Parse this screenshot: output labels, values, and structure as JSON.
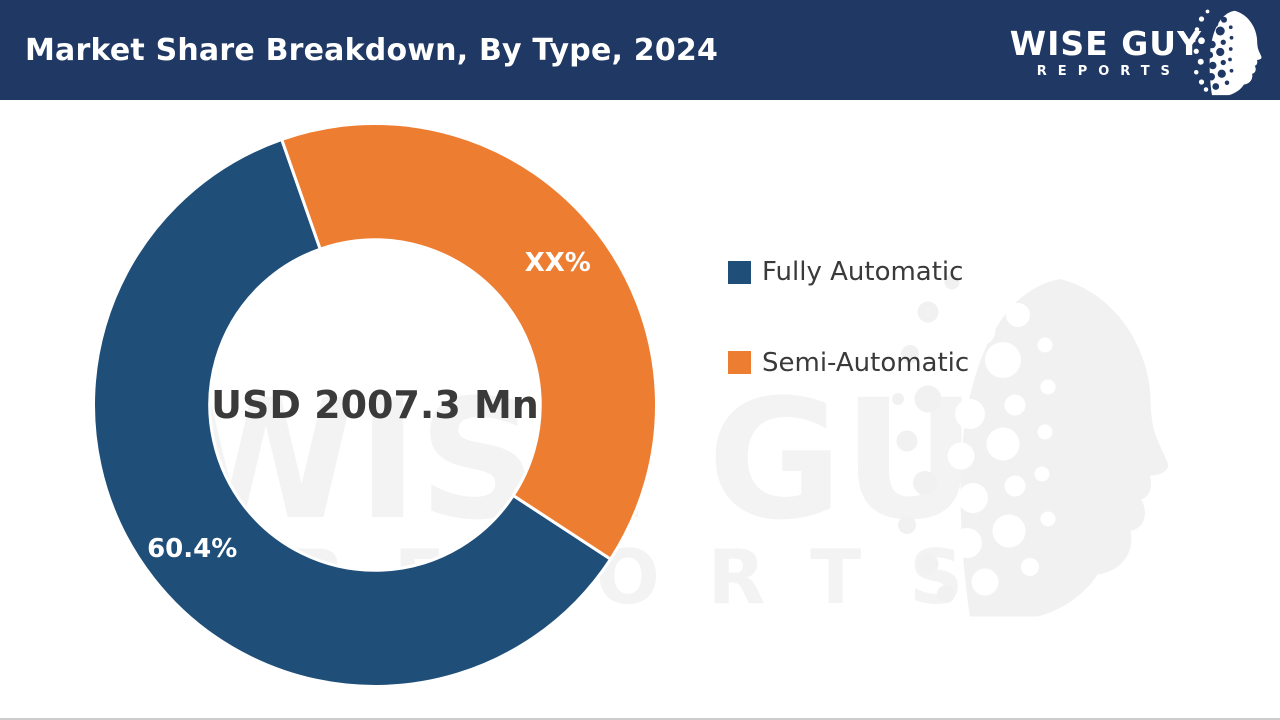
{
  "header": {
    "title": "Market Share Breakdown, By Type, 2024",
    "logo": {
      "line1": "WISE GUY",
      "line2": "REPORTS"
    }
  },
  "watermark": {
    "line1": "WISE GUY",
    "line2": "REPORTS"
  },
  "chart_data": {
    "type": "pie",
    "subtype": "donut",
    "title": "Market Share Breakdown, By Type, 2024",
    "center_label": "USD 2007.3 Mn",
    "donut_hole_ratio": 0.587,
    "start_angle_deg_clockwise_from_top": 123.2,
    "slice_gap_stroke": "#ffffff",
    "legend_position": "right",
    "slices": [
      {
        "label": "Fully Automatic",
        "value": 60.4,
        "display": "60.4%",
        "color": "#1f4e79"
      },
      {
        "label": "Semi-Automatic",
        "value": 39.6,
        "display": "XX%",
        "color": "#ed7d31"
      }
    ]
  },
  "colors": {
    "header_bg": "#1f3864",
    "center_text": "#3a3a3a",
    "legend_text": "#3a3a3a",
    "watermark": "#f3f3f3",
    "watermark_head": "#f1f1f1",
    "border_bottom": "#cccccc"
  }
}
